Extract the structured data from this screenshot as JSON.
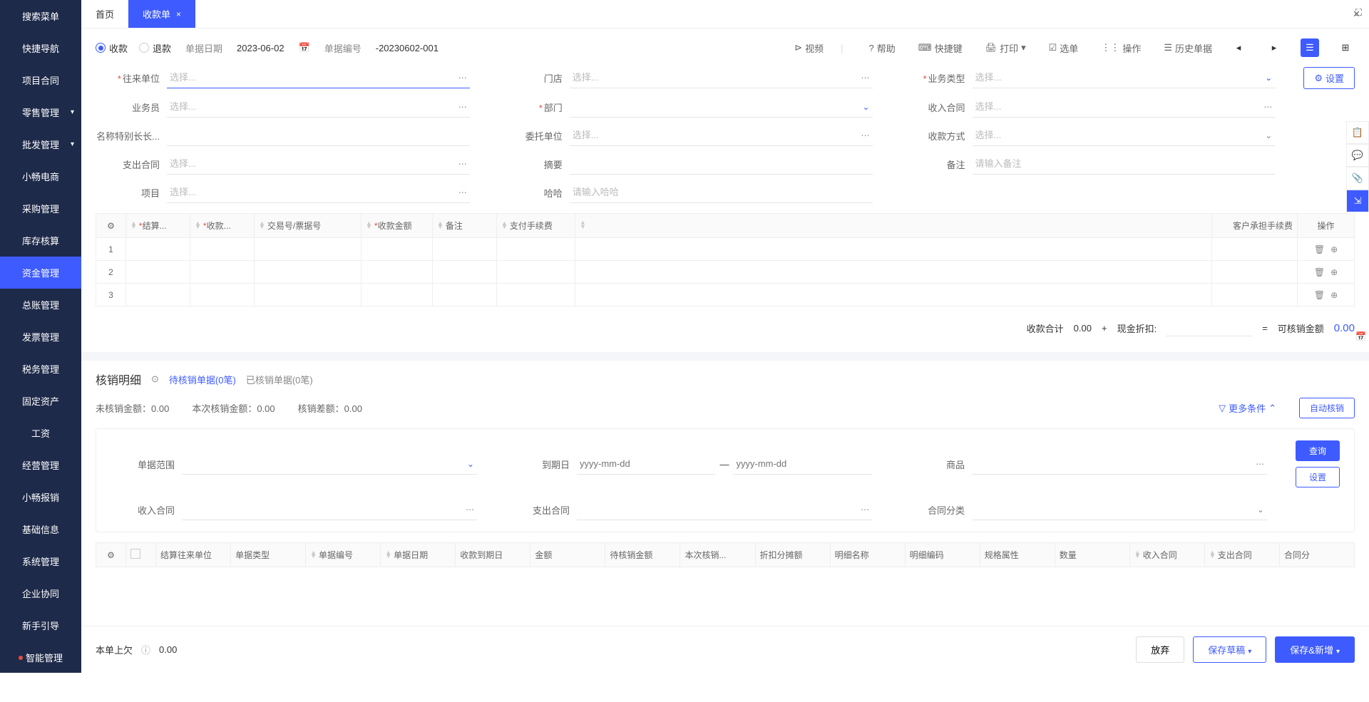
{
  "sidebar": {
    "items": [
      {
        "label": "搜索菜单"
      },
      {
        "label": "快捷导航"
      },
      {
        "label": "项目合同"
      },
      {
        "label": "零售管理",
        "hasChev": true
      },
      {
        "label": "批发管理",
        "hasChev": true
      },
      {
        "label": "小畅电商"
      },
      {
        "label": "采购管理"
      },
      {
        "label": "库存核算"
      },
      {
        "label": "资金管理",
        "active": true
      },
      {
        "label": "总账管理"
      },
      {
        "label": "发票管理"
      },
      {
        "label": "税务管理"
      },
      {
        "label": "固定资产"
      },
      {
        "label": "工资"
      },
      {
        "label": "经营管理"
      },
      {
        "label": "小畅报销"
      },
      {
        "label": "基础信息"
      },
      {
        "label": "系统管理"
      },
      {
        "label": "企业协同"
      },
      {
        "label": "新手引导"
      },
      {
        "label": "智能管理",
        "hasDot": true
      }
    ]
  },
  "tabs": [
    {
      "label": "首页"
    },
    {
      "label": "收款单",
      "active": true,
      "close": true
    }
  ],
  "header": {
    "radio1": "收款",
    "radio2": "退款",
    "dateLabel": "单据日期",
    "dateVal": "2023-06-02",
    "noLabel": "单据编号",
    "noVal": "-20230602-001",
    "tb": {
      "video": "视频",
      "help": "帮助",
      "shortcut": "快捷键",
      "print": "打印",
      "select": "选单",
      "operate": "操作",
      "history": "历史单据"
    }
  },
  "form": {
    "unit": {
      "label": "往来单位",
      "ph": "选择..."
    },
    "store": {
      "label": "门店",
      "ph": "选择..."
    },
    "biztype": {
      "label": "业务类型",
      "ph": "选择..."
    },
    "settings": "设置",
    "salesman": {
      "label": "业务员",
      "ph": "选择..."
    },
    "dept": {
      "label": "部门",
      "ph": ""
    },
    "incomeContract": {
      "label": "收入合同",
      "ph": "选择..."
    },
    "longname": {
      "label": "名称特别长长..."
    },
    "entrustUnit": {
      "label": "委托单位",
      "ph": "选择..."
    },
    "payMethod": {
      "label": "收款方式",
      "ph": "选择..."
    },
    "expenseContract": {
      "label": "支出合同",
      "ph": "选择..."
    },
    "summary": {
      "label": "摘要",
      "ph": ""
    },
    "remark": {
      "label": "备注",
      "ph": "请输入备注"
    },
    "project": {
      "label": "项目",
      "ph": "选择..."
    },
    "haha": {
      "label": "哈哈",
      "ph": "请输入哈哈"
    }
  },
  "table1": {
    "cols": {
      "settle": "结算...",
      "receive": "收款...",
      "tradeNo": "交易号/票据号",
      "amount": "收款金额",
      "remark": "备注",
      "fee": "支付手续费",
      "custFee": "客户承担手续费",
      "op": "操作"
    },
    "rows": [
      "1",
      "2",
      "3"
    ]
  },
  "totals": {
    "collectLabel": "收款合计",
    "collectVal": "0.00",
    "plus": "+",
    "discountLabel": "现金折扣:",
    "eq": "=",
    "writeoffLabel": "可核销金额",
    "writeoffVal": "0.00"
  },
  "sec2": {
    "title": "核销明细",
    "tab1": "待核销单据(0笔)",
    "tab2": "已核销单据(0笔)",
    "amt1Label": "未核销金额：",
    "amt1Val": "0.00",
    "amt2Label": "本次核销金额：",
    "amt2Val": "0.00",
    "amt3Label": "核销差额：",
    "amt3Val": "0.00",
    "moreCond": "更多条件",
    "autoWrite": "自动核销"
  },
  "filter": {
    "range": "单据范围",
    "dueDate": "到期日",
    "datePh": "yyyy-mm-dd",
    "goods": "商品",
    "incomeContract": "收入合同",
    "expenseContract": "支出合同",
    "contractType": "合同分类",
    "query": "查询",
    "settings": "设置"
  },
  "table2": {
    "cols": [
      "结算往来单位",
      "单据类型",
      "单据编号",
      "单据日期",
      "收款到期日",
      "金额",
      "待核销金额",
      "本次核销...",
      "折扣分摊额",
      "明细名称",
      "明细编码",
      "规格属性",
      "数量",
      "收入合同",
      "支出合同",
      "合同分"
    ]
  },
  "footer": {
    "balanceLabel": "本单上欠",
    "balanceVal": "0.00",
    "discard": "放弃",
    "saveDraft": "保存草稿",
    "saveNew": "保存&新增"
  }
}
